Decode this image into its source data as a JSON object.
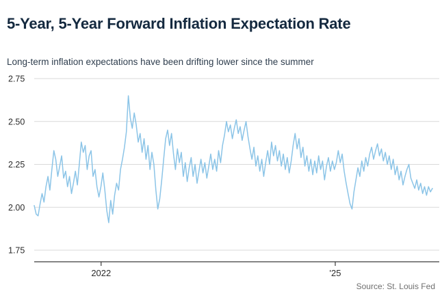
{
  "header": {
    "title": "5-Year, 5-Year Forward Inflation Expectation Rate",
    "subtitle": "Long-term inflation expectations have been drifting lower since the summer"
  },
  "source": "Source: St. Louis Fed",
  "colors": {
    "title": "#14293f",
    "subtitle": "#2e3d4d",
    "line": "#8bc4e7",
    "grid": "#d9d9d9",
    "axis": "#3a3a3a",
    "tick_label": "#2b2b2b"
  },
  "chart_data": {
    "type": "line",
    "title": "5-Year, 5-Year Forward Inflation Expectation Rate",
    "subtitle": "Long-term inflation expectations have been drifting lower since the summer",
    "xlabel": "",
    "ylabel": "",
    "ylim": [
      1.75,
      2.75
    ],
    "y_ticks": [
      2.75,
      2.5,
      2.25,
      2.0,
      1.75
    ],
    "x_tick_labels": [
      "2022",
      "'25"
    ],
    "x_tick_positions": [
      0.168,
      0.756
    ],
    "grid": "horizontal",
    "legend": "none",
    "series": [
      {
        "name": "5-Year, 5-Year Forward Inflation Expectation Rate (%)",
        "values": [
          2.01,
          1.96,
          1.95,
          2.02,
          2.08,
          2.03,
          2.12,
          2.18,
          2.1,
          2.22,
          2.33,
          2.28,
          2.18,
          2.24,
          2.3,
          2.17,
          2.21,
          2.12,
          2.18,
          2.08,
          2.14,
          2.21,
          2.13,
          2.25,
          2.38,
          2.32,
          2.36,
          2.22,
          2.3,
          2.33,
          2.18,
          2.22,
          2.12,
          2.06,
          2.12,
          2.2,
          2.1,
          1.98,
          1.91,
          2.04,
          1.96,
          2.07,
          2.14,
          2.1,
          2.22,
          2.28,
          2.35,
          2.44,
          2.65,
          2.52,
          2.46,
          2.55,
          2.48,
          2.38,
          2.43,
          2.32,
          2.4,
          2.28,
          2.36,
          2.22,
          2.32,
          2.25,
          2.1,
          1.99,
          2.05,
          2.16,
          2.28,
          2.4,
          2.45,
          2.36,
          2.43,
          2.31,
          2.22,
          2.34,
          2.26,
          2.32,
          2.18,
          2.26,
          2.15,
          2.23,
          2.29,
          2.18,
          2.25,
          2.14,
          2.21,
          2.28,
          2.2,
          2.26,
          2.17,
          2.24,
          2.31,
          2.22,
          2.28,
          2.21,
          2.33,
          2.26,
          2.36,
          2.42,
          2.5,
          2.44,
          2.48,
          2.4,
          2.46,
          2.51,
          2.43,
          2.47,
          2.39,
          2.45,
          2.5,
          2.41,
          2.34,
          2.28,
          2.35,
          2.24,
          2.3,
          2.21,
          2.28,
          2.18,
          2.26,
          2.33,
          2.25,
          2.38,
          2.3,
          2.36,
          2.27,
          2.33,
          2.24,
          2.31,
          2.22,
          2.29,
          2.2,
          2.27,
          2.36,
          2.43,
          2.34,
          2.4,
          2.29,
          2.35,
          2.24,
          2.3,
          2.21,
          2.28,
          2.19,
          2.27,
          2.2,
          2.3,
          2.22,
          2.27,
          2.16,
          2.24,
          2.29,
          2.21,
          2.27,
          2.22,
          2.26,
          2.33,
          2.26,
          2.31,
          2.21,
          2.14,
          2.08,
          2.02,
          1.99,
          2.09,
          2.16,
          2.23,
          2.18,
          2.27,
          2.21,
          2.29,
          2.24,
          2.31,
          2.35,
          2.28,
          2.33,
          2.37,
          2.3,
          2.34,
          2.27,
          2.32,
          2.25,
          2.3,
          2.22,
          2.28,
          2.19,
          2.24,
          2.16,
          2.21,
          2.13,
          2.18,
          2.22,
          2.25,
          2.17,
          2.14,
          2.11,
          2.16,
          2.1,
          2.14,
          2.08,
          2.12,
          2.07,
          2.12,
          2.09,
          2.11
        ]
      }
    ]
  }
}
